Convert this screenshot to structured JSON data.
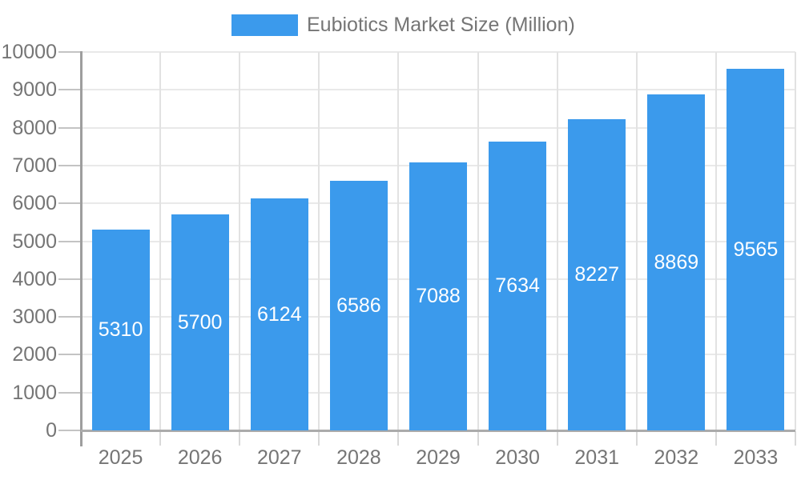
{
  "legend": {
    "label": "Eubiotics Market Size (Million)"
  },
  "colors": {
    "bar": "#3B9AEC",
    "axis_line": "#9e9e9e",
    "baseline": "#ababab",
    "gridline_h": "#e9e9e9",
    "gridline_v": "#e2e2e2",
    "tick_left": "#c4c4c4",
    "tick_bottom": "#d9d9d9",
    "axis_text": "#757575",
    "bar_label_text": "#ffffff",
    "background": "#ffffff"
  },
  "chart_data": {
    "type": "bar",
    "title": "Eubiotics Market Size (Million)",
    "series_name": "Eubiotics Market Size (Million)",
    "categories": [
      "2025",
      "2026",
      "2027",
      "2028",
      "2029",
      "2030",
      "2031",
      "2032",
      "2033"
    ],
    "values": [
      5310,
      5700,
      6124,
      6586,
      7088,
      7634,
      8227,
      8869,
      9565
    ],
    "value_labels": [
      "5310",
      "5700",
      "6124",
      "6586",
      "7088",
      "7634",
      "8227",
      "8869",
      "9565"
    ],
    "xlabel": "",
    "ylabel": "",
    "ylim": [
      0,
      10000
    ],
    "y_tick_step": 1000,
    "y_ticks": [
      0,
      1000,
      2000,
      3000,
      4000,
      5000,
      6000,
      7000,
      8000,
      9000,
      10000
    ],
    "grid": true,
    "legend_position": "top",
    "value_label_position": "inside-center"
  }
}
